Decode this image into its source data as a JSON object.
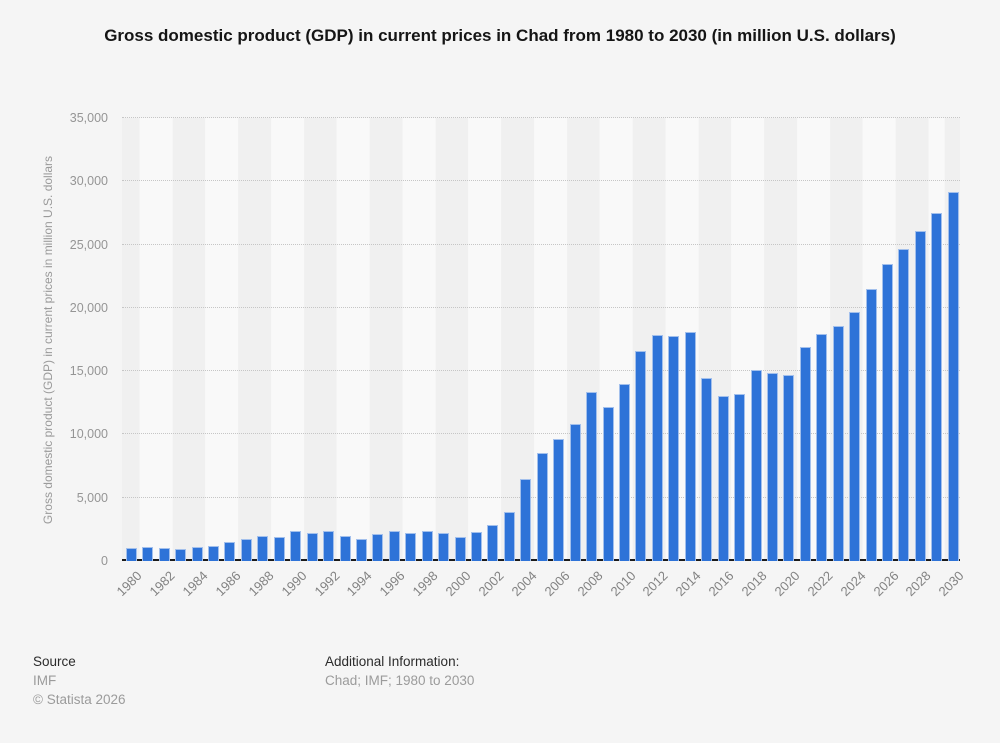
{
  "title": "Gross domestic product (GDP) in current prices in Chad from 1980 to 2030 (in million U.S. dollars)",
  "y_axis": {
    "title": "Gross domestic product (GDP) in current prices in million U.S. dollars",
    "ticks": [
      {
        "value": 0,
        "label": "0"
      },
      {
        "value": 5000,
        "label": "5,000"
      },
      {
        "value": 10000,
        "label": "10,000"
      },
      {
        "value": 15000,
        "label": "15,000"
      },
      {
        "value": 20000,
        "label": "20,000"
      },
      {
        "value": 25000,
        "label": "25,000"
      },
      {
        "value": 30000,
        "label": "30,000"
      },
      {
        "value": 35000,
        "label": "35,000"
      }
    ],
    "max": 35000
  },
  "x_axis": {
    "tick_labels": [
      "1980",
      "1982",
      "1984",
      "1986",
      "1988",
      "1990",
      "1992",
      "1994",
      "1996",
      "1998",
      "2000",
      "2002",
      "2004",
      "2006",
      "2008",
      "2010",
      "2012",
      "2014",
      "2016",
      "2018",
      "2020",
      "2022",
      "2024",
      "2026",
      "2028",
      "2030"
    ]
  },
  "footer": {
    "source_label": "Source",
    "source_value": "IMF",
    "copyright": "© Statista 2026",
    "additional_label": "Additional Information:",
    "additional_value": "Chad; IMF; 1980 to 2030"
  },
  "colors": {
    "bar": "#2e73d8",
    "bar_border": "#a3c0ec",
    "band_dark": "#f0f0f0",
    "band_light": "#f9f9f9",
    "gridline": "#c6c6c6",
    "baseline": "#1b1b1b",
    "canvas_bg": "#f5f5f5"
  },
  "chart_data": {
    "type": "bar",
    "title": "Gross domestic product (GDP) in current prices in Chad from 1980 to 2030 (in million U.S. dollars)",
    "xlabel": "",
    "ylabel": "Gross domestic product (GDP) in current prices in million U.S. dollars",
    "ylim": [
      0,
      35000
    ],
    "grid": true,
    "legend": false,
    "categories": [
      1980,
      1981,
      1982,
      1983,
      1984,
      1985,
      1986,
      1987,
      1988,
      1989,
      1990,
      1991,
      1992,
      1993,
      1994,
      1995,
      1996,
      1997,
      1998,
      1999,
      2000,
      2001,
      2002,
      2003,
      2004,
      2005,
      2006,
      2007,
      2008,
      2009,
      2010,
      2011,
      2012,
      2013,
      2014,
      2015,
      2016,
      2017,
      2018,
      2019,
      2020,
      2021,
      2022,
      2023,
      2024,
      2025,
      2026,
      2027,
      2028,
      2029,
      2030
    ],
    "values": [
      1000,
      1100,
      1000,
      950,
      1080,
      1200,
      1520,
      1760,
      2000,
      1930,
      2350,
      2190,
      2380,
      2000,
      1700,
      2110,
      2380,
      2180,
      2370,
      2200,
      1910,
      2300,
      2840,
      3880,
      6440,
      8560,
      9670,
      10860,
      13360,
      12190,
      13950,
      16590,
      17840,
      17760,
      18130,
      14450,
      13010,
      13230,
      15090,
      14840,
      14690,
      16890,
      17940,
      18540,
      19710,
      21490,
      23440,
      24670,
      26050,
      27500,
      29140
    ]
  }
}
